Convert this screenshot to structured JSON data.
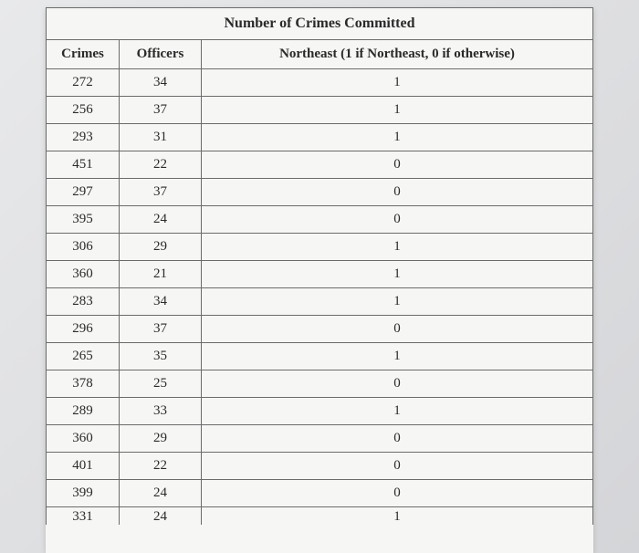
{
  "table": {
    "title": "Number of Crimes Committed",
    "columns": [
      "Crimes",
      "Officers",
      "Northeast (1 if Northeast, 0 if otherwise)"
    ],
    "rows": [
      [
        272,
        34,
        1
      ],
      [
        256,
        37,
        1
      ],
      [
        293,
        31,
        1
      ],
      [
        451,
        22,
        0
      ],
      [
        297,
        37,
        0
      ],
      [
        395,
        24,
        0
      ],
      [
        306,
        29,
        1
      ],
      [
        360,
        21,
        1
      ],
      [
        283,
        34,
        1
      ],
      [
        296,
        37,
        0
      ],
      [
        265,
        35,
        1
      ],
      [
        378,
        25,
        0
      ],
      [
        289,
        33,
        1
      ],
      [
        360,
        29,
        0
      ],
      [
        401,
        22,
        0
      ],
      [
        399,
        24,
        0
      ],
      [
        331,
        24,
        1
      ]
    ]
  }
}
